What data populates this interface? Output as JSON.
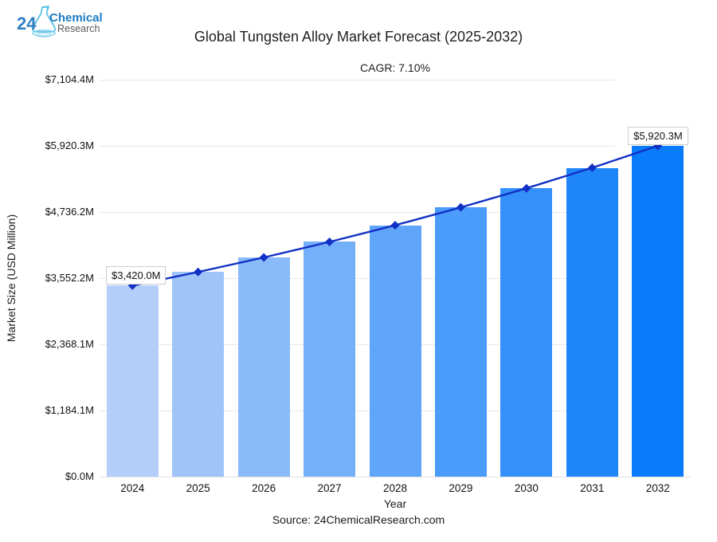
{
  "logo": {
    "number": "24",
    "line1": "Chemical",
    "line2": "Research",
    "number_color": "#2e7fc3",
    "line1_color": "#1c7cc2",
    "line2_color": "#58595b",
    "flask_color": "#5ec1e8"
  },
  "header": {
    "title": "Global Tungsten Alloy Market Forecast (2025-2032)",
    "subtitle": "CAGR: 7.10%"
  },
  "source_text": "Source: 24ChemicalResearch.com",
  "chart_data": {
    "type": "bar",
    "title": "Global Tungsten Alloy Market Forecast (2025-2032)",
    "subtitle": "CAGR: 7.10%",
    "xlabel": "Year",
    "ylabel": "Market Size (USD Million)",
    "categories": [
      "2024",
      "2025",
      "2026",
      "2027",
      "2028",
      "2029",
      "2030",
      "2031",
      "2032"
    ],
    "values": [
      3420.0,
      3662.8,
      3922.9,
      4201.4,
      4499.7,
      4819.2,
      5161.4,
      5527.8,
      5920.3
    ],
    "series_note": "bars with connected diamond-marker trend line over bar tops",
    "cagr_percent": 7.1,
    "ylim": [
      0,
      7104.4
    ],
    "yticks": [
      {
        "value": 0.0,
        "label": "$0.0M"
      },
      {
        "value": 1184.1,
        "label": "$1,184.1M"
      },
      {
        "value": 2368.1,
        "label": "$2,368.1M"
      },
      {
        "value": 3552.2,
        "label": "$3,552.2M"
      },
      {
        "value": 4736.2,
        "label": "$4,736.2M"
      },
      {
        "value": 5920.3,
        "label": "$5,920.3M"
      },
      {
        "value": 7104.4,
        "label": "$7,104.4M"
      }
    ],
    "annotations": [
      {
        "index": 0,
        "label": "$3,420.0M"
      },
      {
        "index": 8,
        "label": "$5,920.3M"
      }
    ],
    "bar_colors": [
      "#b3cef8",
      "#9ec4f8",
      "#89baf9",
      "#74aff9",
      "#5fa5f9",
      "#4a9bfa",
      "#3491fa",
      "#1f86fa",
      "#0a7cfa"
    ],
    "line_color": "#1130c4",
    "grid_color": "#e8e8e8",
    "grid": "horizontal",
    "legend": "none"
  }
}
